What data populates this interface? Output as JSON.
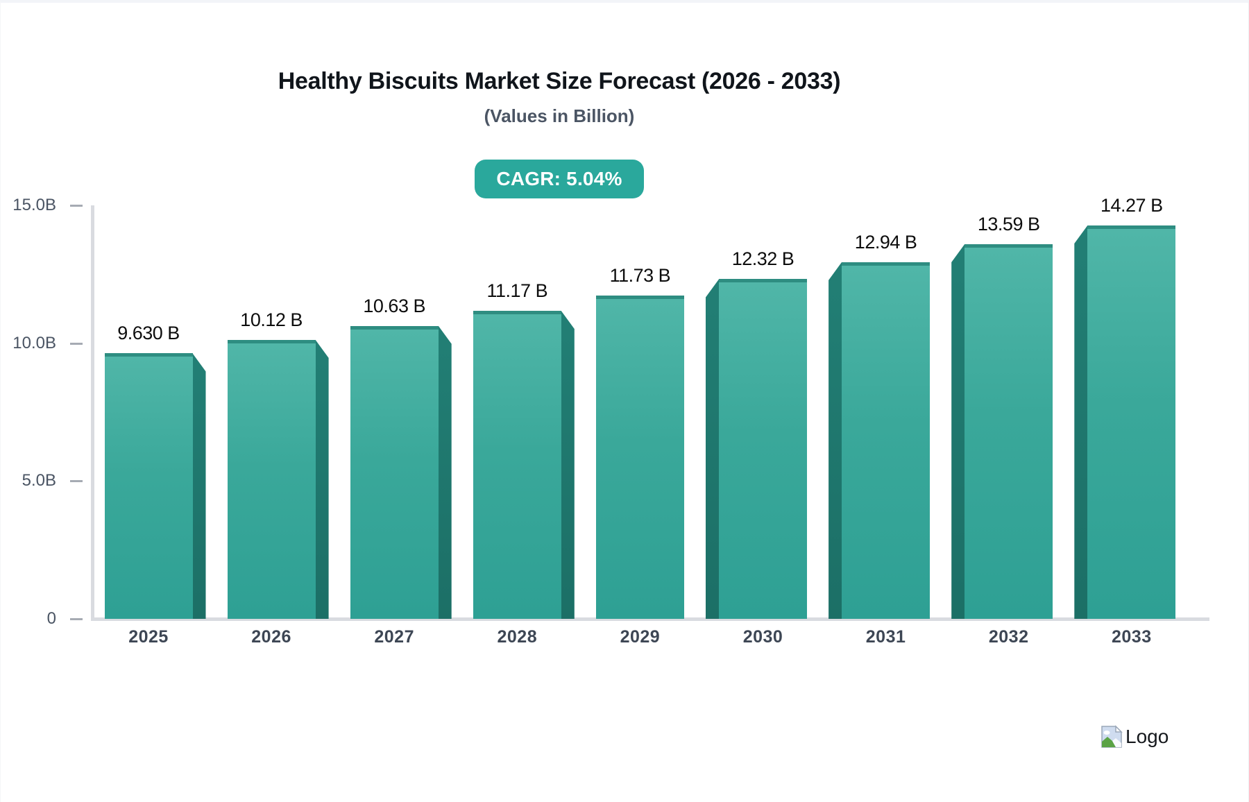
{
  "page": {
    "title": "Healthy Biscuits Market Size Forecast (2026 - 2033)",
    "subtitle": "(Values in Billion)",
    "cagr_badge": "CAGR: 5.04%",
    "logo_text": "Logo"
  },
  "colors": {
    "bar_face_top": "#50b6a8",
    "bar_face_bottom": "#2ea094",
    "bar_side": "#1f7d73",
    "bar_cap": "#2e8d81",
    "badge_bg": "#2aa89c",
    "axis_line": "#d9dbe0",
    "tick_dash": "#a6abb3",
    "ytick_text": "#4a5463",
    "year_text": "#3d4654",
    "value_text": "#0d0d0d"
  },
  "chart_data": {
    "type": "bar",
    "title": "Healthy Biscuits Market Size Forecast (2026 - 2033)",
    "subtitle": "(Values in Billion)",
    "cagr": "CAGR: 5.04%",
    "categories": [
      "2025",
      "2026",
      "2027",
      "2028",
      "2029",
      "2030",
      "2031",
      "2032",
      "2033"
    ],
    "values": [
      9.63,
      10.12,
      10.63,
      11.17,
      11.73,
      12.32,
      12.94,
      13.59,
      14.27
    ],
    "value_labels": [
      "9.630 B",
      "10.12 B",
      "10.63 B",
      "11.17 B",
      "11.73 B",
      "12.32 B",
      "12.94 B",
      "13.59 B",
      "14.27 B"
    ],
    "xlabel": "",
    "ylabel": "",
    "ylim": [
      0,
      15
    ],
    "yticks": [
      {
        "value": 15,
        "label": "15.0B"
      },
      {
        "value": 10,
        "label": "10.0B"
      },
      {
        "value": 5,
        "label": "5.0B"
      },
      {
        "value": 0,
        "label": "0"
      }
    ],
    "grid": false,
    "legend": false,
    "style": "3d-beveled-teal-bars"
  }
}
